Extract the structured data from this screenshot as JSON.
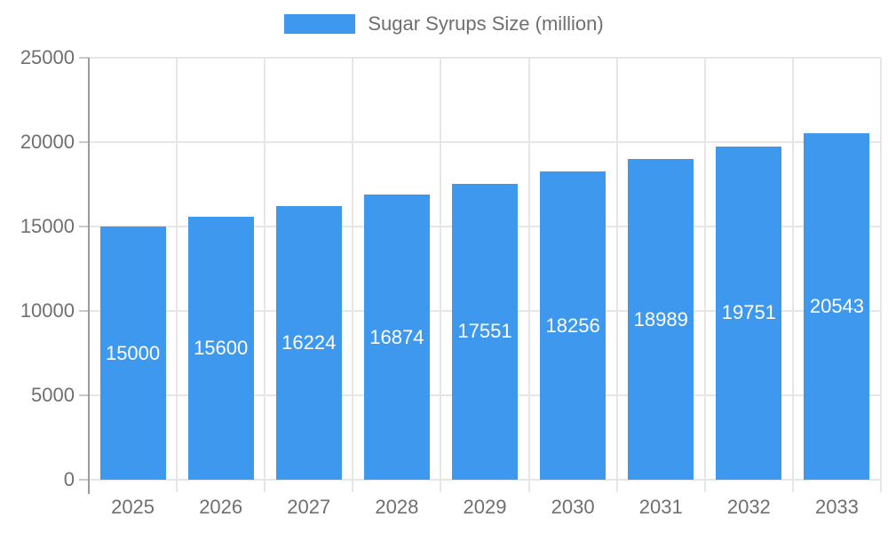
{
  "legend": {
    "label": "Sugar Syrups Size (million)",
    "swatch_color": "#3e99ee"
  },
  "chart_data": {
    "type": "bar",
    "title": "Sugar Syrups Size (million)",
    "categories": [
      "2025",
      "2026",
      "2027",
      "2028",
      "2029",
      "2030",
      "2031",
      "2032",
      "2033"
    ],
    "series": [
      {
        "name": "Sugar Syrups Size (million)",
        "values": [
          15000,
          15600,
          16224,
          16874,
          17551,
          18256,
          18989,
          19751,
          20543
        ]
      }
    ],
    "data_labels": [
      "15000",
      "15600",
      "16224",
      "16874",
      "17551",
      "18256",
      "18989",
      "19751",
      "20543"
    ],
    "xlabel": "",
    "ylabel": "",
    "ylim": [
      0,
      25000
    ],
    "yticks": [
      0,
      5000,
      10000,
      15000,
      20000,
      25000
    ],
    "ytick_labels": [
      "0",
      "5000",
      "10000",
      "15000",
      "20000",
      "25000"
    ],
    "grid": true,
    "legend_position": "top",
    "bar_color": "#3e99ee",
    "gridline_color": "#e6e6e6",
    "axis_text_color": "#6f6f6f",
    "value_label_color": "#ffffff"
  }
}
